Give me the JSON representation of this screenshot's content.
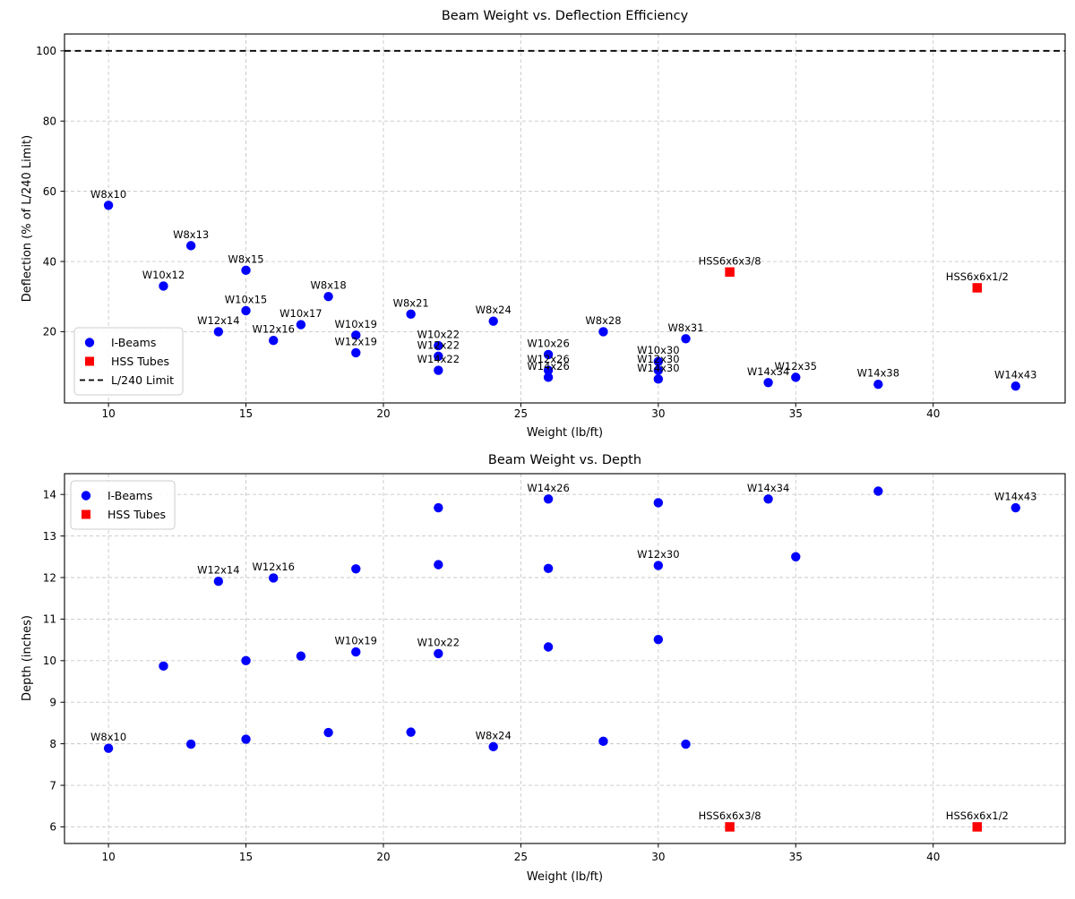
{
  "figure": {
    "background": "#ffffff",
    "accent_colors": {
      "ibeam": "#0000ff",
      "hss": "#ff0000",
      "limit_line": "#000000",
      "grid": "#c8c8c8"
    }
  },
  "chart_data": [
    {
      "type": "scatter",
      "title": "Beam Weight vs. Deflection Efficiency",
      "xlabel": "Weight (lb/ft)",
      "ylabel": "Deflection (% of L/240 Limit)",
      "xlim": [
        8.4,
        44.8
      ],
      "ylim": [
        -0.3,
        104.8
      ],
      "xticks": [
        10,
        15,
        20,
        25,
        30,
        35,
        40
      ],
      "yticks": [
        20,
        40,
        60,
        80,
        100
      ],
      "grid": true,
      "ref_line": {
        "y": 100,
        "label": "L/240 Limit",
        "color": "#000000",
        "style": "dashed"
      },
      "legend": {
        "loc": "lower-left",
        "entries": [
          {
            "marker": "circle-icon",
            "color": "#0000ff",
            "label": "I-Beams"
          },
          {
            "marker": "square-icon",
            "color": "#ff0000",
            "label": "HSS Tubes"
          },
          {
            "marker": "dashed-line-icon",
            "color": "#000000",
            "label": "L/240 Limit"
          }
        ]
      },
      "series": [
        {
          "name": "I-Beams",
          "color": "#0000ff",
          "marker": "circle",
          "points": [
            {
              "label": "W8x10",
              "x": 10,
              "y": 56
            },
            {
              "label": "W10x12",
              "x": 12,
              "y": 33
            },
            {
              "label": "W8x13",
              "x": 13,
              "y": 44.5
            },
            {
              "label": "W12x14",
              "x": 14,
              "y": 20
            },
            {
              "label": "W8x15",
              "x": 15,
              "y": 37.5
            },
            {
              "label": "W10x15",
              "x": 15,
              "y": 26
            },
            {
              "label": "W12x16",
              "x": 16,
              "y": 17.5
            },
            {
              "label": "W10x17",
              "x": 17,
              "y": 22
            },
            {
              "label": "W8x18",
              "x": 18,
              "y": 30
            },
            {
              "label": "W10x19",
              "x": 19,
              "y": 19
            },
            {
              "label": "W12x19",
              "x": 19,
              "y": 14
            },
            {
              "label": "W8x21",
              "x": 21,
              "y": 25
            },
            {
              "label": "W10x22",
              "x": 22,
              "y": 16
            },
            {
              "label": "W12x22",
              "x": 22,
              "y": 13
            },
            {
              "label": "W14x22",
              "x": 22,
              "y": 9
            },
            {
              "label": "W8x24",
              "x": 24,
              "y": 23
            },
            {
              "label": "W10x26",
              "x": 26,
              "y": 13.5
            },
            {
              "label": "W12x26",
              "x": 26,
              "y": 9
            },
            {
              "label": "W14x26",
              "x": 26,
              "y": 7
            },
            {
              "label": "W8x28",
              "x": 28,
              "y": 20
            },
            {
              "label": "W10x30",
              "x": 30,
              "y": 11.5
            },
            {
              "label": "W12x30",
              "x": 30,
              "y": 9
            },
            {
              "label": "W14x30",
              "x": 30,
              "y": 6.5
            },
            {
              "label": "W8x31",
              "x": 31,
              "y": 18
            },
            {
              "label": "W14x34",
              "x": 34,
              "y": 5.5
            },
            {
              "label": "W12x35",
              "x": 35,
              "y": 7
            },
            {
              "label": "W14x38",
              "x": 38,
              "y": 5
            },
            {
              "label": "W14x43",
              "x": 43,
              "y": 4.5
            }
          ]
        },
        {
          "name": "HSS Tubes",
          "color": "#ff0000",
          "marker": "square",
          "points": [
            {
              "label": "HSS6x6x3/8",
              "x": 32.6,
              "y": 37
            },
            {
              "label": "HSS6x6x1/2",
              "x": 41.6,
              "y": 32.5
            }
          ]
        }
      ]
    },
    {
      "type": "scatter",
      "title": "Beam Weight vs. Depth",
      "xlabel": "Weight (lb/ft)",
      "ylabel": "Depth (inches)",
      "xlim": [
        8.4,
        44.8
      ],
      "ylim": [
        5.6,
        14.5
      ],
      "xticks": [
        10,
        15,
        20,
        25,
        30,
        35,
        40
      ],
      "yticks": [
        6,
        7,
        8,
        9,
        10,
        11,
        12,
        13,
        14
      ],
      "grid": true,
      "legend": {
        "loc": "upper-left",
        "entries": [
          {
            "marker": "circle-icon",
            "color": "#0000ff",
            "label": "I-Beams"
          },
          {
            "marker": "square-icon",
            "color": "#ff0000",
            "label": "HSS Tubes"
          }
        ]
      },
      "series": [
        {
          "name": "I-Beams",
          "color": "#0000ff",
          "marker": "circle",
          "points": [
            {
              "label": "W8x10",
              "x": 10,
              "y": 7.89
            },
            {
              "x": 12,
              "y": 9.87
            },
            {
              "x": 13,
              "y": 7.99
            },
            {
              "label": "W12x14",
              "x": 14,
              "y": 11.91
            },
            {
              "x": 15,
              "y": 8.11
            },
            {
              "x": 15,
              "y": 10.0
            },
            {
              "label": "W12x16",
              "x": 16,
              "y": 11.99
            },
            {
              "x": 17,
              "y": 10.11
            },
            {
              "x": 18,
              "y": 8.27
            },
            {
              "label": "W10x19",
              "x": 19,
              "y": 10.21
            },
            {
              "x": 19,
              "y": 12.21
            },
            {
              "x": 21,
              "y": 8.28
            },
            {
              "label": "W10x22",
              "x": 22,
              "y": 10.17
            },
            {
              "x": 22,
              "y": 12.31
            },
            {
              "x": 22,
              "y": 13.68
            },
            {
              "label": "W8x24",
              "x": 24,
              "y": 7.93
            },
            {
              "x": 26,
              "y": 10.33
            },
            {
              "x": 26,
              "y": 12.22
            },
            {
              "label": "W14x26",
              "x": 26,
              "y": 13.89
            },
            {
              "x": 28,
              "y": 8.06
            },
            {
              "x": 30,
              "y": 10.51
            },
            {
              "label": "W12x30",
              "x": 30,
              "y": 12.29
            },
            {
              "x": 30,
              "y": 13.8
            },
            {
              "x": 31,
              "y": 7.99
            },
            {
              "label": "W14x34",
              "x": 34,
              "y": 13.89
            },
            {
              "x": 35,
              "y": 12.5
            },
            {
              "x": 38,
              "y": 14.08
            },
            {
              "label": "W14x43",
              "x": 43,
              "y": 13.68
            }
          ]
        },
        {
          "name": "HSS Tubes",
          "color": "#ff0000",
          "marker": "square",
          "points": [
            {
              "label": "HSS6x6x3/8",
              "x": 32.6,
              "y": 6.0
            },
            {
              "label": "HSS6x6x1/2",
              "x": 41.6,
              "y": 6.0
            }
          ]
        }
      ]
    }
  ]
}
